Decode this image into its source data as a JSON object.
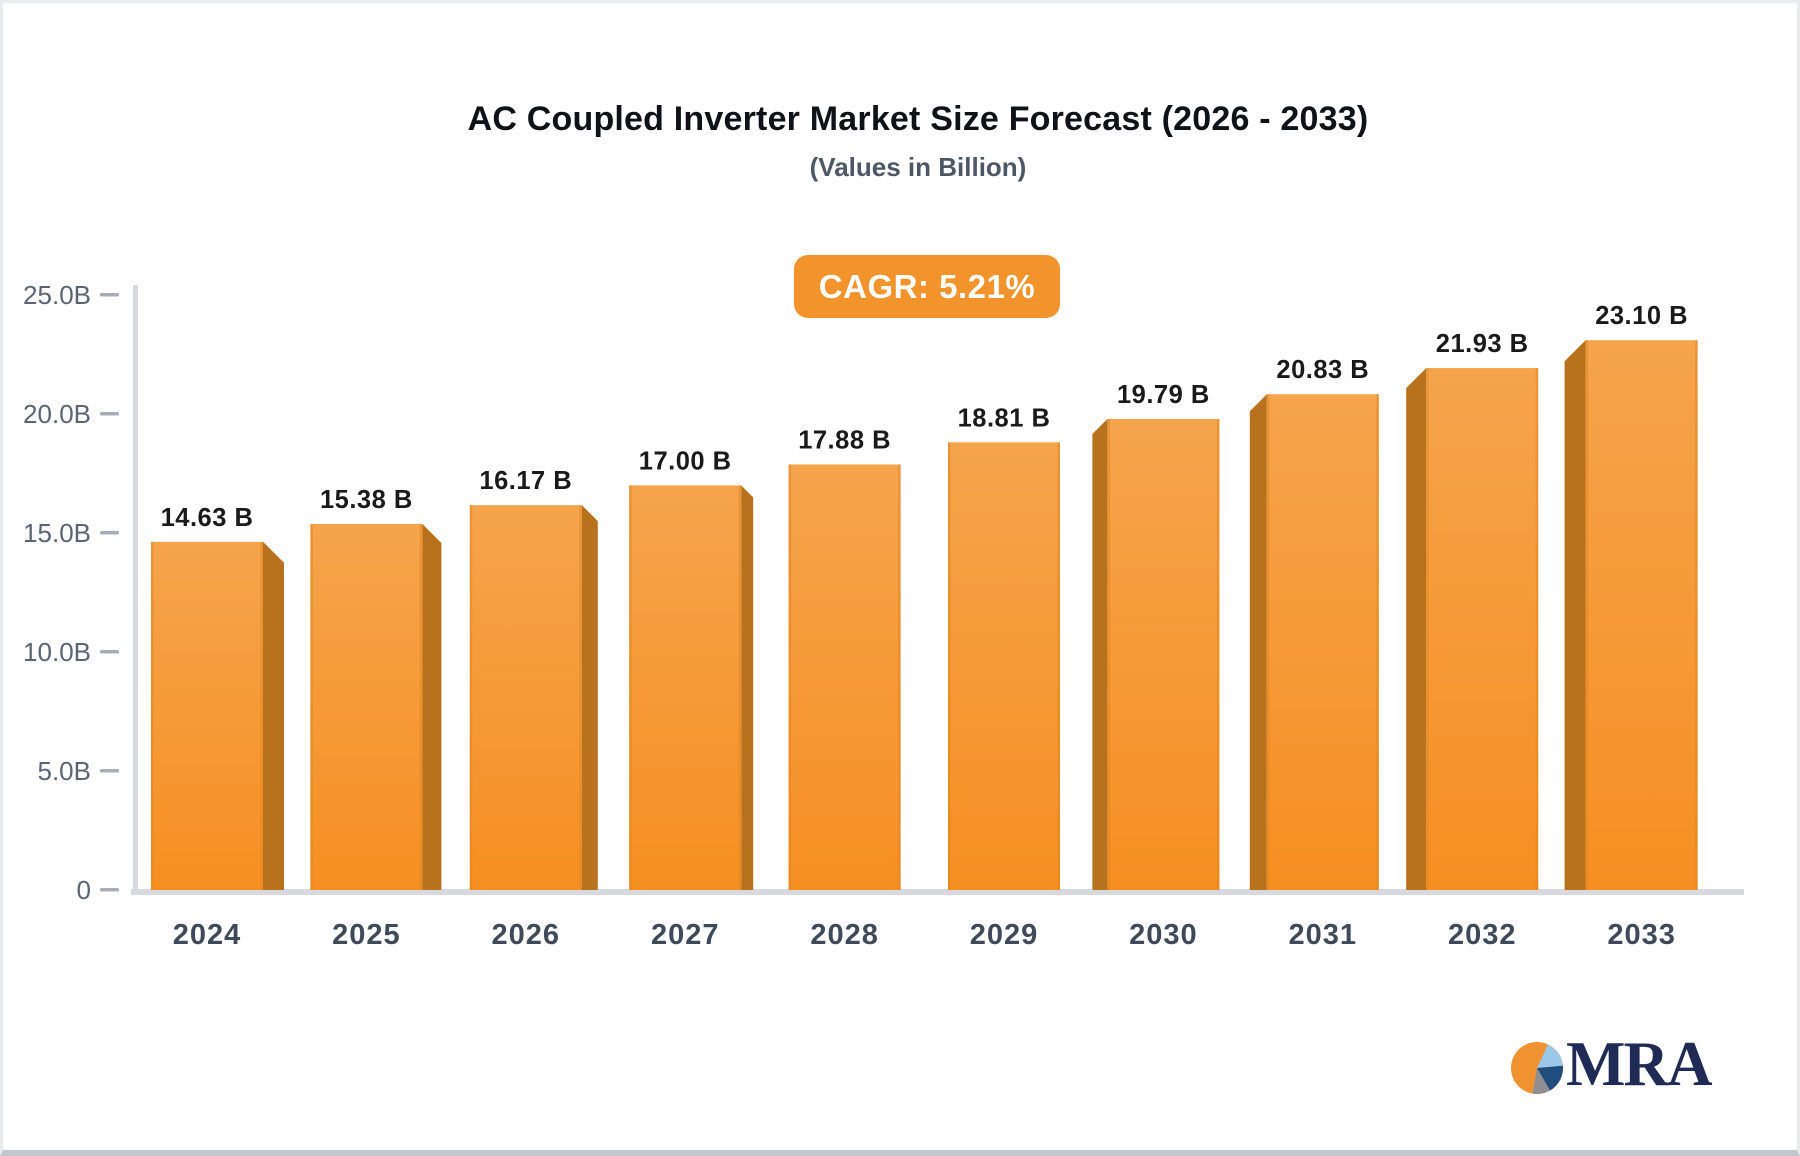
{
  "chart_data": {
    "type": "bar",
    "title": "AC Coupled Inverter Market Size Forecast (2026 - 2033)",
    "subtitle": "(Values in Billion)",
    "cagr_badge": "CAGR: 5.21%",
    "categories": [
      "2024",
      "2025",
      "2026",
      "2027",
      "2028",
      "2029",
      "2030",
      "2031",
      "2032",
      "2033"
    ],
    "values": [
      14.63,
      15.38,
      16.17,
      17.0,
      17.88,
      18.81,
      19.79,
      20.83,
      21.93,
      23.1
    ],
    "bar_labels": [
      "14.63 B",
      "15.38 B",
      "16.17 B",
      "17.00 B",
      "17.88 B",
      "18.81 B",
      "19.79 B",
      "20.83 B",
      "21.93 B",
      "23.10 B"
    ],
    "y_ticks": [
      {
        "value": 0,
        "label": "0"
      },
      {
        "value": 5,
        "label": "5.0B"
      },
      {
        "value": 10,
        "label": "10.0B"
      },
      {
        "value": 15,
        "label": "15.0B"
      },
      {
        "value": 20,
        "label": "20.0B"
      },
      {
        "value": 25,
        "label": "25.0B"
      }
    ],
    "ylim": [
      0,
      25
    ],
    "grid": false,
    "legend": false,
    "unit": "Billion USD"
  },
  "colors": {
    "bar_front_top": "#f5a44c",
    "bar_front_bottom": "#f68f22",
    "bar_edge_accent": "#dd831f",
    "bar_side": "#b8721d",
    "badge_background": "#f3932c",
    "axis_line": "#d8d9df",
    "tick_dash": "#a7acb7",
    "y_label_text": "#5b6474",
    "x_label_text": "#3e4a5a",
    "value_label_text": "#1a1a1a"
  },
  "brand": {
    "name": "MRA",
    "icon_colors": {
      "orange": "#f0922f",
      "light_blue": "#9bc8e8",
      "navy": "#1f4e7e",
      "gray": "#8f8f93"
    }
  }
}
